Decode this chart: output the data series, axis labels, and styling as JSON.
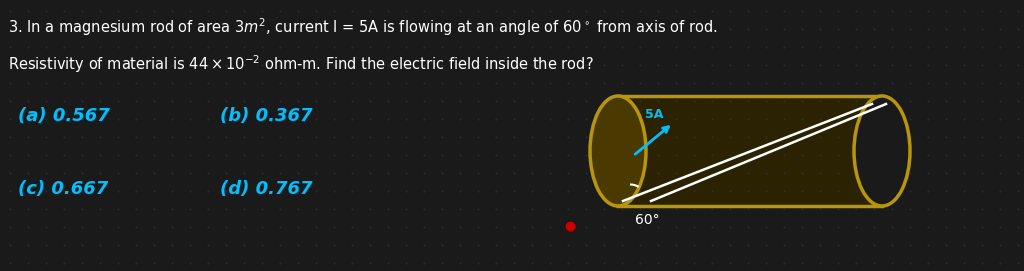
{
  "bg_color": "#1a1a1a",
  "dot_color": "#2a2a3a",
  "title_line1": "3. In a magnesium rod of area $3m^2$, current I = 5A is flowing at an angle of $60^\\circ$ from axis of rod.",
  "title_line2": "Resistivity of material is $44 \\times 10^{-2}$ ohm-m. Find the electric field inside the rod?",
  "options": [
    {
      "label": "(a)",
      "value": "0.567"
    },
    {
      "label": "(b)",
      "value": "0.367"
    },
    {
      "label": "(c)",
      "value": "0.667"
    },
    {
      "label": "(d)",
      "value": "0.767"
    }
  ],
  "option_color": "#00bfff",
  "text_color": "#ffffff",
  "cylinder_color": "#b8960c",
  "arrow_color": "#00bfff",
  "angle_label": "60°",
  "current_label": "5A",
  "red_dot_color": "#cc0000"
}
